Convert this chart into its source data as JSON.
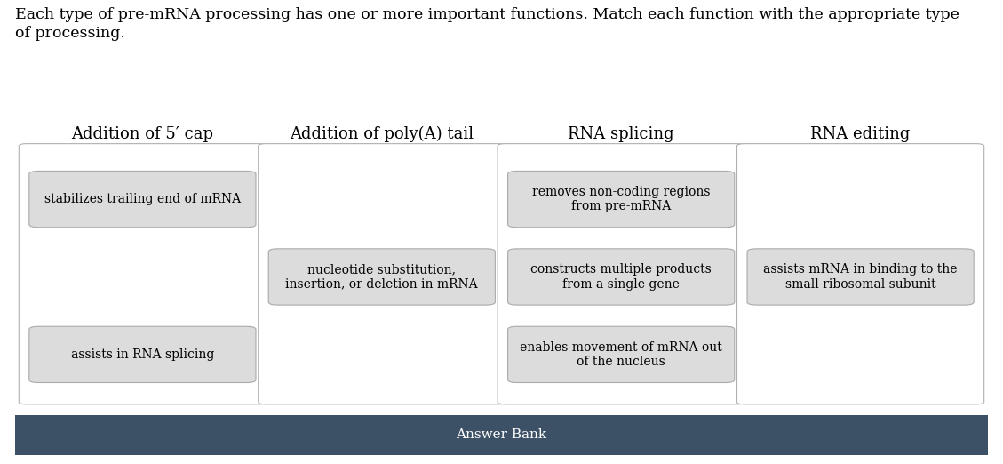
{
  "title_line1": "Each type of pre-mRNA processing has one or more important functions. Match each function with the appropriate type",
  "title_line2": "of processing.",
  "title_fontsize": 12.5,
  "columns": [
    {
      "header": "Addition of 5′ cap"
    },
    {
      "header": "Addition of poly(A) tail"
    },
    {
      "header": "RNA splicing"
    },
    {
      "header": "RNA editing"
    }
  ],
  "cards": [
    {
      "text": "stabilizes trailing end of mRNA",
      "col": 0,
      "row": 0
    },
    {
      "text": "assists in RNA splicing",
      "col": 0,
      "row": 2
    },
    {
      "text": "nucleotide substitution,\ninsertion, or deletion in mRNA",
      "col": 1,
      "row": 1
    },
    {
      "text": "removes non-coding regions\nfrom pre-mRNA",
      "col": 2,
      "row": 0
    },
    {
      "text": "constructs multiple products\nfrom a single gene",
      "col": 2,
      "row": 1
    },
    {
      "text": "enables movement of mRNA out\nof the nucleus",
      "col": 2,
      "row": 2
    },
    {
      "text": "assists mRNA in binding to the\nsmall ribosomal subunit",
      "col": 3,
      "row": 1
    }
  ],
  "outer_border_color": "#cc0000",
  "outer_border_linewidth": 1.5,
  "column_border_color": "#b0b0b0",
  "column_bg_color": "#ffffff",
  "card_bg_color": "#dcdcdc",
  "card_border_color": "#aaaaaa",
  "answer_bank_bg": "#3d5166",
  "answer_bank_text": "Answer Bank",
  "fig_width": 11.29,
  "fig_height": 5.22,
  "header_fontsize": 13,
  "card_fontsize": 10
}
